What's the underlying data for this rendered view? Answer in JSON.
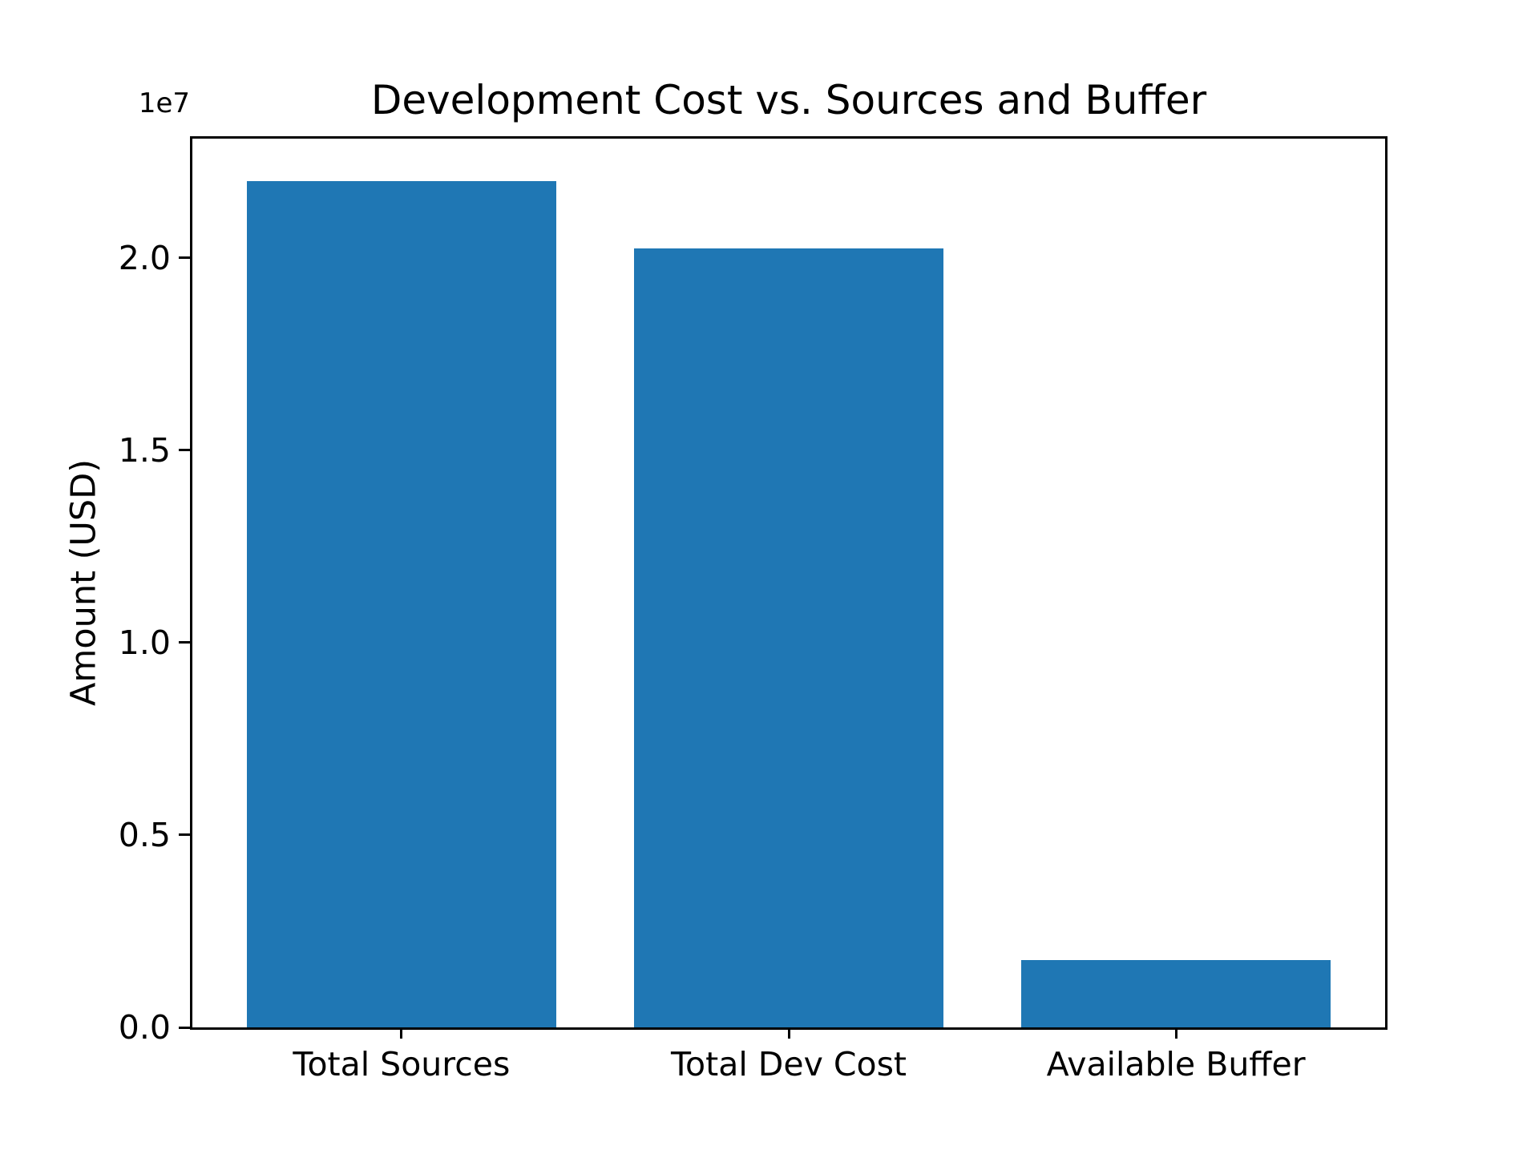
{
  "chart_data": {
    "type": "bar",
    "title": "Development Cost vs. Sources and Buffer",
    "categories": [
      "Total Sources",
      "Total Dev Cost",
      "Available Buffer"
    ],
    "values": [
      22000000,
      20250000,
      1750000
    ],
    "xlabel": "",
    "ylabel": "Amount (USD)",
    "offset_label": "1e7",
    "ylim": [
      0,
      23100000
    ],
    "yticks": [
      0,
      5000000,
      10000000,
      15000000,
      20000000
    ],
    "ytick_labels": [
      "0.0",
      "0.5",
      "1.0",
      "1.5",
      "2.0"
    ],
    "bar_color": "#1f77b4",
    "text_color": "#000000",
    "grid": false,
    "legend_position": "none"
  }
}
